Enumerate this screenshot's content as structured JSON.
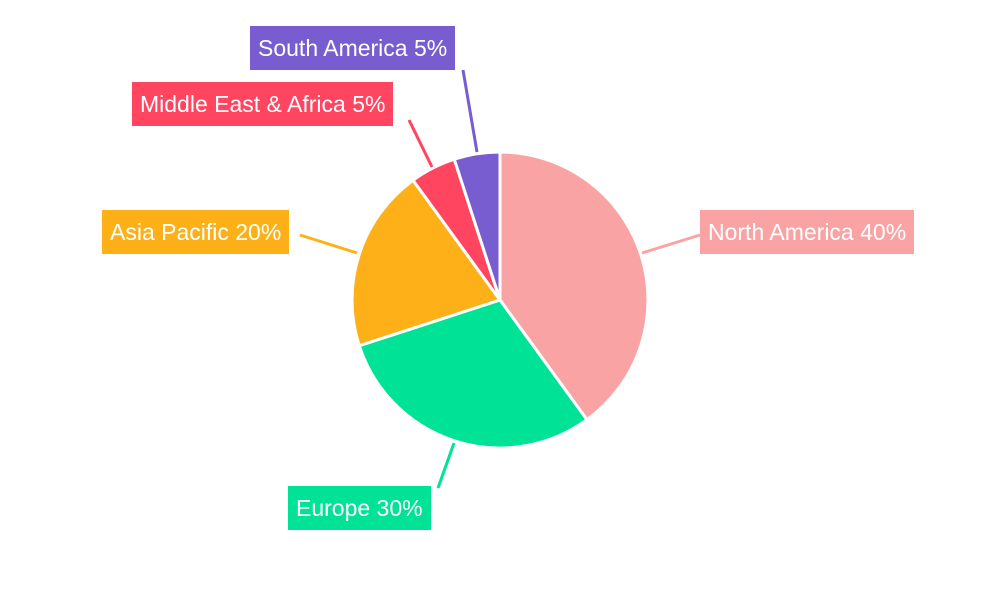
{
  "chart_data": {
    "type": "pie",
    "categories": [
      "North America",
      "Europe",
      "Asia Pacific",
      "Middle East & Africa",
      "South America"
    ],
    "values": [
      40,
      30,
      20,
      5,
      5
    ],
    "data_labels": [
      "North America 40%",
      "Europe 30%",
      "Asia Pacific 20%",
      "Middle East & Africa 5%",
      "South America 5%"
    ],
    "colors": [
      "#F9A3A4",
      "#00E396",
      "#FEB019",
      "#FF4560",
      "#775DD0"
    ],
    "start_angle": "12 o'clock, clockwise",
    "legend": "none"
  }
}
